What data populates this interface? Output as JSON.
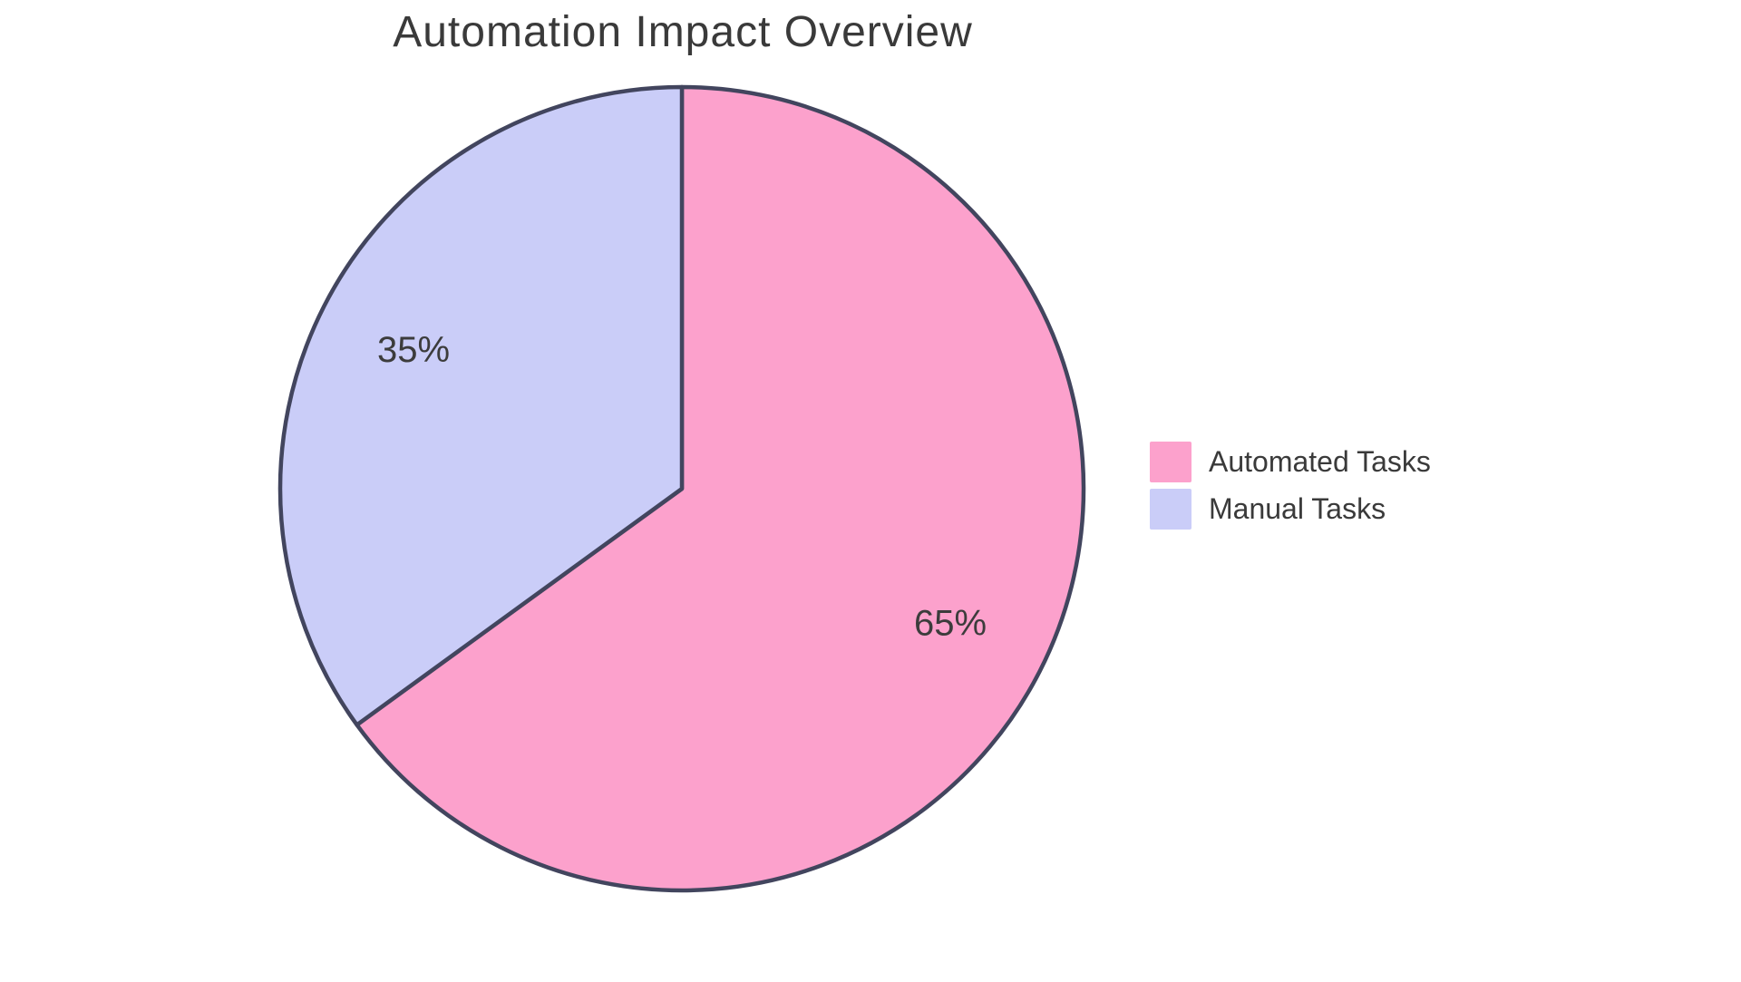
{
  "page": {
    "background_color": "#ffffff"
  },
  "chart_data": {
    "type": "pie",
    "title": "Automation Impact Overview",
    "categories": [
      "Automated Tasks",
      "Manual Tasks"
    ],
    "values": [
      65,
      35
    ],
    "slice_labels": [
      "65%",
      "35%"
    ],
    "colors": [
      "#FCA1CC",
      "#CACDF8"
    ],
    "slice_outline_color": "#42455E",
    "slice_label_color": "#3C3C3C",
    "start_angle_deg": 0,
    "direction": "clockwise",
    "legend_position": "right",
    "legend_entries": [
      "Automated Tasks",
      "Manual Tasks"
    ]
  },
  "legend": {
    "items": [
      {
        "label": "Automated Tasks",
        "color": "#FCA1CC"
      },
      {
        "label": "Manual Tasks",
        "color": "#CACDF8"
      }
    ]
  }
}
